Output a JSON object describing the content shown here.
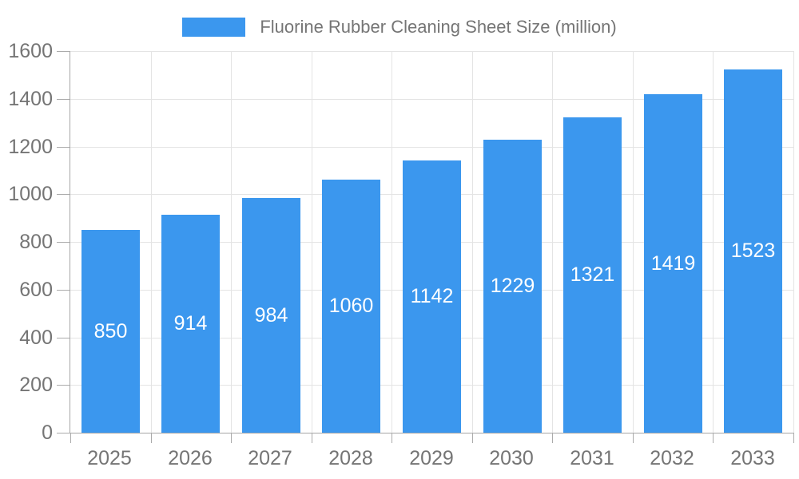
{
  "legend": {
    "label": "Fluorine Rubber Cleaning Sheet Size (million)"
  },
  "chart_data": {
    "type": "bar",
    "title": "Fluorine Rubber Cleaning Sheet Size (million)",
    "categories": [
      "2025",
      "2026",
      "2027",
      "2028",
      "2029",
      "2030",
      "2031",
      "2032",
      "2033"
    ],
    "values": [
      850,
      914,
      984,
      1060,
      1142,
      1229,
      1321,
      1419,
      1523
    ],
    "xlabel": "",
    "ylabel": "",
    "ylim": [
      0,
      1600
    ],
    "yticks": [
      0,
      200,
      400,
      600,
      800,
      1000,
      1200,
      1400,
      1600
    ],
    "grid": true,
    "legend_position": "top-center",
    "value_labels": "inside-center",
    "colors": {
      "bar": "#3B97EE",
      "value_label": "#FFFFFF",
      "gridline": "#E4E4E4",
      "axis": "#A6A6A6",
      "tick": "#ABABAB",
      "text": "#757575",
      "background": "#FFFFFF"
    }
  }
}
